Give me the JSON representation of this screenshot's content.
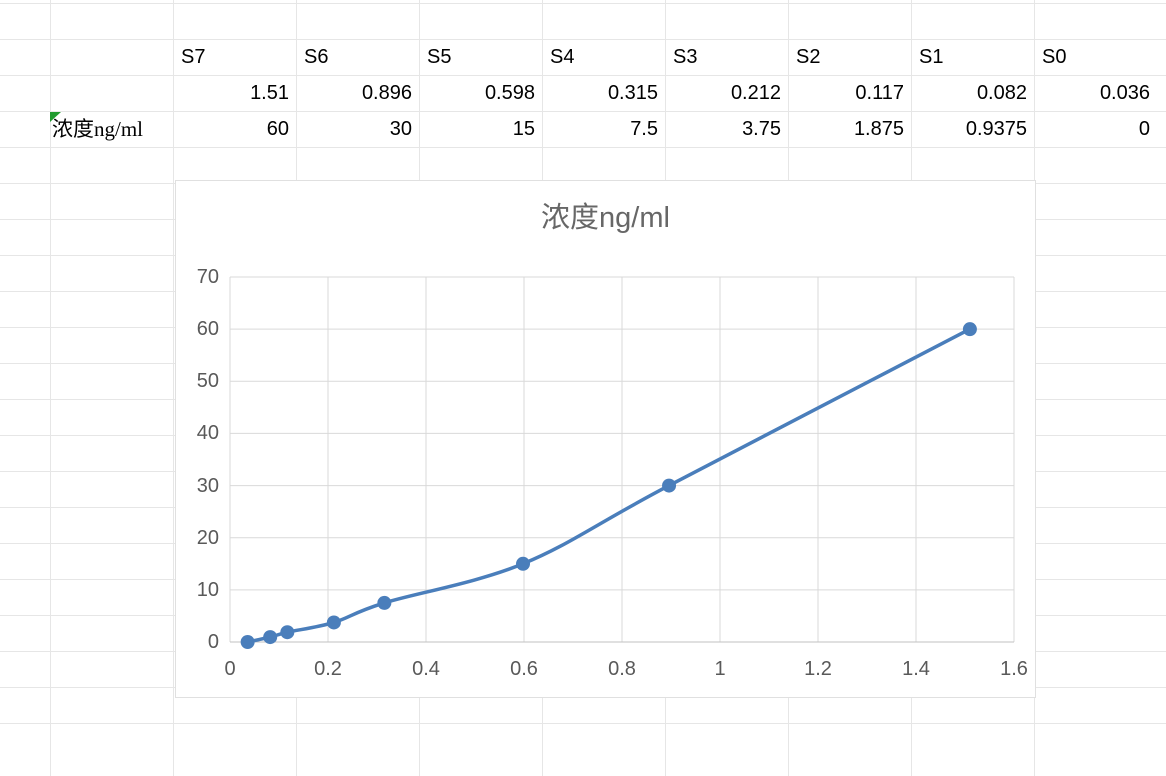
{
  "sheet": {
    "header_row": [
      "S7",
      "S6",
      "S5",
      "S4",
      "S3",
      "S2",
      "S1",
      "S0"
    ],
    "value_row": [
      "1.51",
      "0.896",
      "0.598",
      "0.315",
      "0.212",
      "0.117",
      "0.082",
      "0.036"
    ],
    "conc_label": "浓度ng/ml",
    "conc_values": [
      "60",
      "30",
      "15",
      "7.5",
      "3.75",
      "1.875",
      "0.9375",
      "0"
    ]
  },
  "chart_data": {
    "type": "line",
    "title": "浓度ng/ml",
    "x": [
      0.036,
      0.082,
      0.117,
      0.212,
      0.315,
      0.598,
      0.896,
      1.51
    ],
    "y": [
      0,
      0.9375,
      1.875,
      3.75,
      7.5,
      15,
      30,
      60
    ],
    "xlim": [
      0,
      1.6
    ],
    "ylim": [
      0,
      70
    ],
    "x_ticks": [
      "0",
      "0.2",
      "0.4",
      "0.6",
      "0.8",
      "1",
      "1.2",
      "1.4",
      "1.6"
    ],
    "y_ticks": [
      "0",
      "10",
      "20",
      "30",
      "40",
      "50",
      "60",
      "70"
    ],
    "grid": true,
    "legend": "none",
    "smooth": true,
    "marker": "circle"
  },
  "colors": {
    "series_blue": "#4a7ebb",
    "flag_green": "#219a2f",
    "sheet_grid": "#e6e6e6",
    "chart_grid": "#d9d9d9",
    "axis_line": "#c2c2c2",
    "chart_text": "#595959",
    "title_text": "#676767",
    "chart_border": "#e0e0e0"
  }
}
